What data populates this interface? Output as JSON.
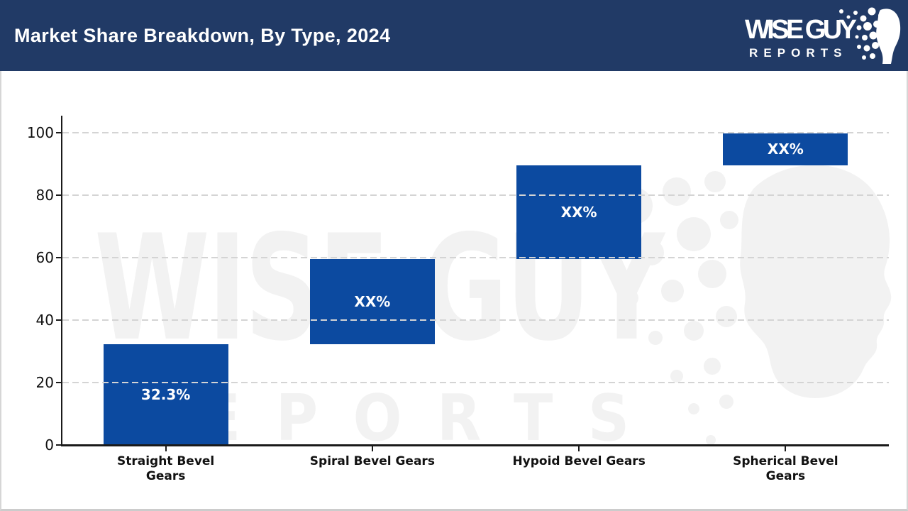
{
  "header": {
    "title": "Market Share Breakdown, By Type, 2024",
    "logo": {
      "line1": "WISE GUY",
      "line2": "REPORTS"
    }
  },
  "watermark": {
    "line1": "WISE GUY",
    "line2": "REPORTS"
  },
  "colors": {
    "header_bg": "#213a66",
    "title_text": "#ffffff",
    "logo_text": "#ffffff",
    "bar": "#0c4aa0",
    "bar_label": "#ffffff",
    "axis": "#1a1a1a",
    "tick_label": "#111111",
    "grid": "#d4d4d4",
    "watermark": "#f2f2f2"
  },
  "chart_data": {
    "type": "bar",
    "variant": "waterfall",
    "title": "Market Share Breakdown, By Type, 2024",
    "categories": [
      "Straight Bevel\nGears",
      "Spiral Bevel Gears",
      "Hypoid Bevel Gears",
      "Spherical Bevel\nGears"
    ],
    "segments": [
      {
        "category": "Straight Bevel Gears",
        "start": 0,
        "end": 32.3,
        "label": "32.3%"
      },
      {
        "category": "Spiral Bevel Gears",
        "start": 32.3,
        "end": 59.5,
        "label": "XX%"
      },
      {
        "category": "Hypoid Bevel Gears",
        "start": 59.5,
        "end": 89.6,
        "label": "XX%"
      },
      {
        "category": "Spherical Bevel Gears",
        "start": 89.6,
        "end": 99.8,
        "label": "XX%"
      }
    ],
    "ylim": [
      0,
      100
    ],
    "yticks": [
      0,
      20,
      40,
      60,
      80,
      100
    ],
    "xlabel": "",
    "ylabel": "",
    "grid": "horizontal-dashed",
    "legend": "none"
  }
}
